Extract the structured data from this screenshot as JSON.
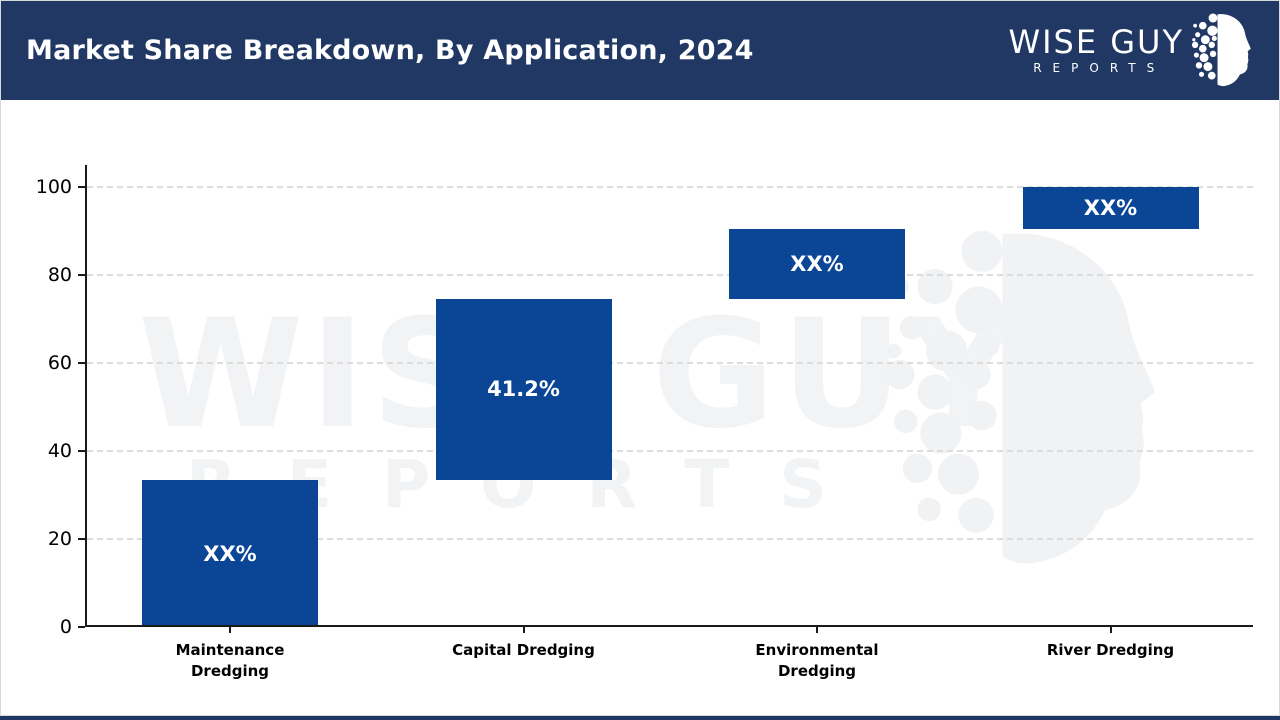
{
  "header": {
    "title": "Market Share Breakdown, By Application, 2024",
    "logo": {
      "line1": "WISE GUY",
      "line2": "REPORTS"
    }
  },
  "watermark": {
    "line1": "WISE GUY",
    "line2": "REPORTS"
  },
  "colors": {
    "header_bg": "#213865",
    "bar": "#0b4596",
    "bar_label": "#ffffff",
    "watermark": "#f2f3f5",
    "gridline": "#dcdcdc",
    "axis": "#1a1a1a"
  },
  "chart_data": {
    "type": "bar",
    "subtype": "waterfall",
    "title": "Market Share Breakdown, By Application, 2024",
    "xlabel": "",
    "ylabel": "",
    "categories": [
      "Maintenance Dredging",
      "Capital Dredging",
      "Environmental Dredging",
      "River Dredging"
    ],
    "segments": [
      {
        "category": "Maintenance Dredging",
        "start": 0,
        "end": 33.4,
        "label": "XX%"
      },
      {
        "category": "Capital Dredging",
        "start": 33.4,
        "end": 74.6,
        "label": "41.2%"
      },
      {
        "category": "Environmental Dredging",
        "start": 74.6,
        "end": 90.5,
        "label": "XX%"
      },
      {
        "category": "River Dredging",
        "start": 90.5,
        "end": 100,
        "label": "XX%"
      }
    ],
    "yticks": [
      0,
      20,
      40,
      60,
      80,
      100
    ],
    "ylim": [
      0,
      105
    ],
    "grid": "horizontal-dashed",
    "legend": "none"
  }
}
